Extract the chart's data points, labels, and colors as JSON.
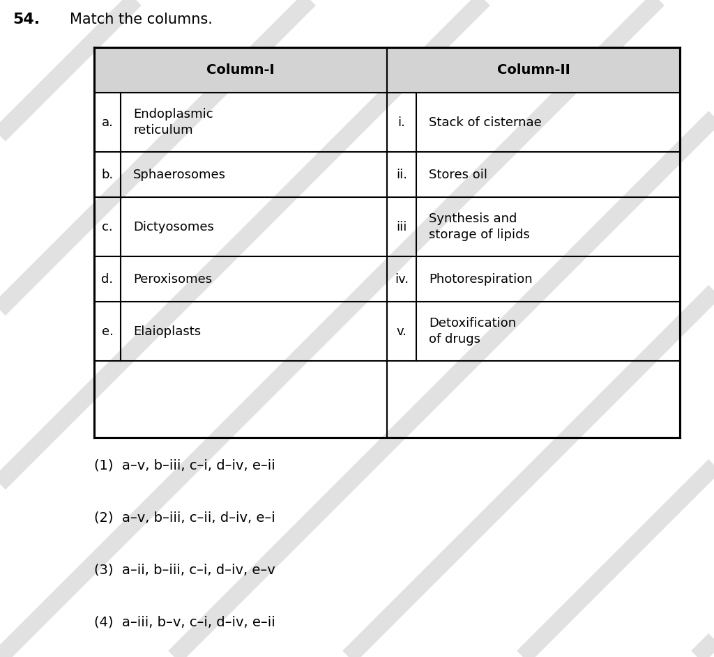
{
  "question_number": "54.",
  "question_text": "Match the columns.",
  "background_color": "#ffffff",
  "watermark_color": "#d0d0d0",
  "table": {
    "header": [
      "Column-I",
      "Column-II"
    ],
    "col1_labels": [
      "a.",
      "b.",
      "c.",
      "d.",
      "e."
    ],
    "col1_items": [
      "Endoplasmic\nreticulum",
      "Sphaerosomes",
      "Dictyosomes",
      "Peroxisomes",
      "Elaioplasts"
    ],
    "col2_labels": [
      "i.",
      "ii.",
      "iii",
      "iv.",
      "v."
    ],
    "col2_items": [
      "Stack of cisternae",
      "Stores oil",
      "Synthesis and\nstorage of lipids",
      "Photorespiration",
      "Detoxification\nof drugs"
    ],
    "header_bg": "#d3d3d3",
    "border_color": "#000000",
    "text_color": "#000000"
  },
  "options": [
    "(1)  a–v, b–iii, c–i, d–iv, e–ii",
    "(2)  a–v, b–iii, c–ii, d–iv, e–i",
    "(3)  a–ii, b–iii, c–i, d–iv, e–v",
    "(4)  a–iii, b–v, c–i, d–iv, e–ii"
  ],
  "fig_width": 10.24,
  "fig_height": 9.43,
  "dpi": 100
}
